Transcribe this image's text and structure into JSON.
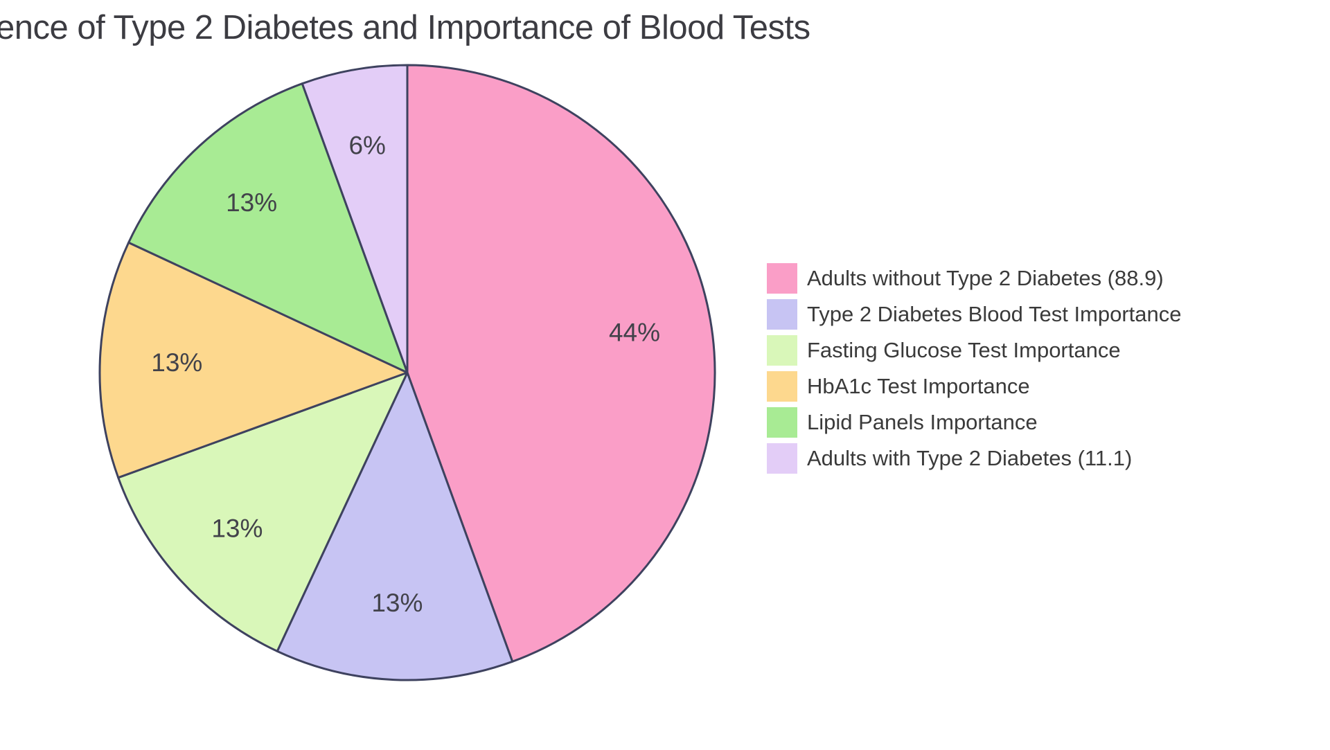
{
  "colors": {
    "background": "#ffffff",
    "slice_border": "#3e425f",
    "title_text": "#3c3c42",
    "label_text": "#42424a",
    "legend_text": "#3a3a3a"
  },
  "chart_data": {
    "type": "pie",
    "title": "ence of Type 2 Diabetes and Importance of Blood Tests",
    "legend_position": "right",
    "start_angle_deg": 0,
    "direction": "clockwise",
    "values_shown": {
      "adults_without_type_2_diabetes": 88.9,
      "adults_with_type_2_diabetes": 11.1
    },
    "slices": [
      {
        "label": "Adults without Type 2 Diabetes (88.9)",
        "percent_label": "44%",
        "sweep_deg": 160.02,
        "color": "#FA9EC7"
      },
      {
        "label": "Type 2 Diabetes Blood Test Importance",
        "percent_label": "13%",
        "sweep_deg": 45,
        "color": "#C7C4F3"
      },
      {
        "label": "Fasting Glucose Test Importance",
        "percent_label": "13%",
        "sweep_deg": 45,
        "color": "#D9F7B9"
      },
      {
        "label": "HbA1c Test Importance",
        "percent_label": "13%",
        "sweep_deg": 45,
        "color": "#FDD88E"
      },
      {
        "label": "Lipid Panels Importance",
        "percent_label": "13%",
        "sweep_deg": 45,
        "color": "#A8EB94"
      },
      {
        "label": "Adults with Type 2 Diabetes (11.1)",
        "percent_label": "6%",
        "sweep_deg": 19.98,
        "color": "#E3CDF7"
      }
    ]
  }
}
